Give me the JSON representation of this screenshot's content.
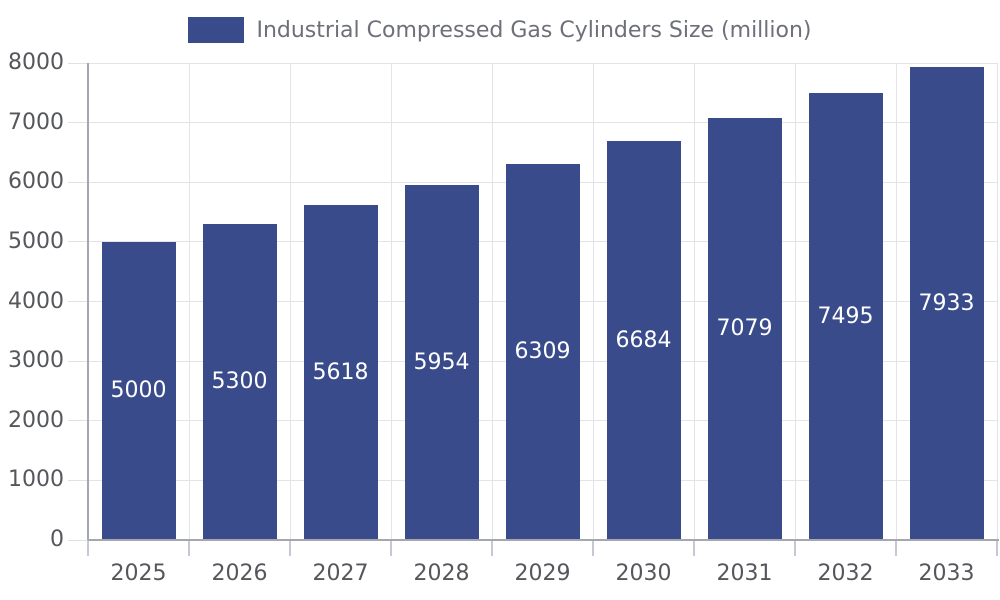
{
  "chart_data": {
    "type": "bar",
    "title": "Industrial Compressed Gas Cylinders Size (million)",
    "legend": [
      "Industrial Compressed Gas Cylinders Size (million)"
    ],
    "legend_position": "top",
    "categories": [
      "2025",
      "2026",
      "2027",
      "2028",
      "2029",
      "2030",
      "2031",
      "2032",
      "2033"
    ],
    "values": [
      5000,
      5300,
      5618,
      5954,
      6309,
      6684,
      7079,
      7495,
      7933
    ],
    "xlabel": "",
    "ylabel": "",
    "ylim": [
      0,
      8000
    ],
    "y_tick_step": 1000,
    "y_tick_labels": [
      "0",
      "1000",
      "2000",
      "3000",
      "4000",
      "5000",
      "6000",
      "7000",
      "8000"
    ],
    "grid": true,
    "bar_color": "#394B8B",
    "value_label_color": "#FFFFFF"
  },
  "colors": {
    "background": "#FFFFFF",
    "bar": "#394B8B",
    "grid_line": "#E3E4E8",
    "axis_line": "#A4A7AE",
    "tick_mark": "#C5C9D6",
    "tick_label": "#55575C",
    "legend_text": "#6E7079",
    "value_label": "#FFFFFF"
  }
}
